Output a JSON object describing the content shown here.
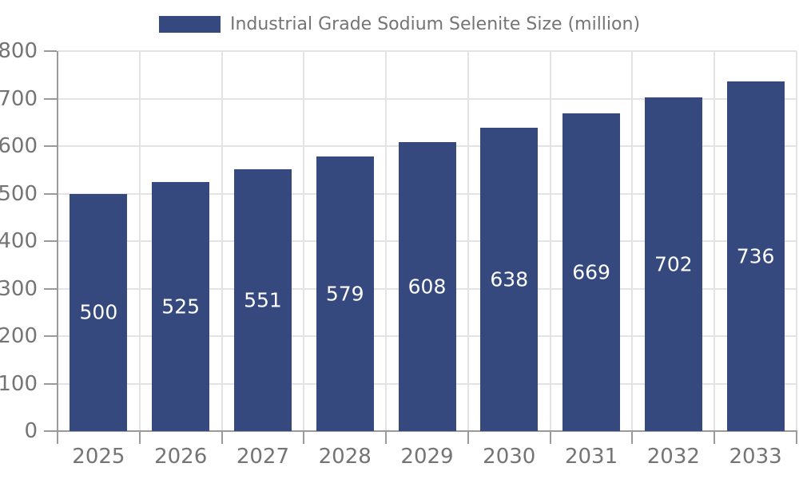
{
  "legend": {
    "label": "Industrial Grade Sodium Selenite Size (million)"
  },
  "chart_data": {
    "type": "bar",
    "title": "Industrial Grade Sodium Selenite Size (million)",
    "categories": [
      "2025",
      "2026",
      "2027",
      "2028",
      "2029",
      "2030",
      "2031",
      "2032",
      "2033"
    ],
    "values": [
      500,
      525,
      551,
      579,
      608,
      638,
      669,
      702,
      736
    ],
    "xlabel": "",
    "ylabel": "",
    "ylim": [
      0,
      800
    ],
    "yticks": [
      0,
      100,
      200,
      300,
      400,
      500,
      600,
      700,
      800
    ],
    "grid": true,
    "legend_position": "top",
    "colors": {
      "bar": "#36497E",
      "grid": "#e3e3e3",
      "axis": "#9a9a9a",
      "tick_label": "#747474",
      "value_label": "#ffffff",
      "background": "#ffffff"
    }
  }
}
